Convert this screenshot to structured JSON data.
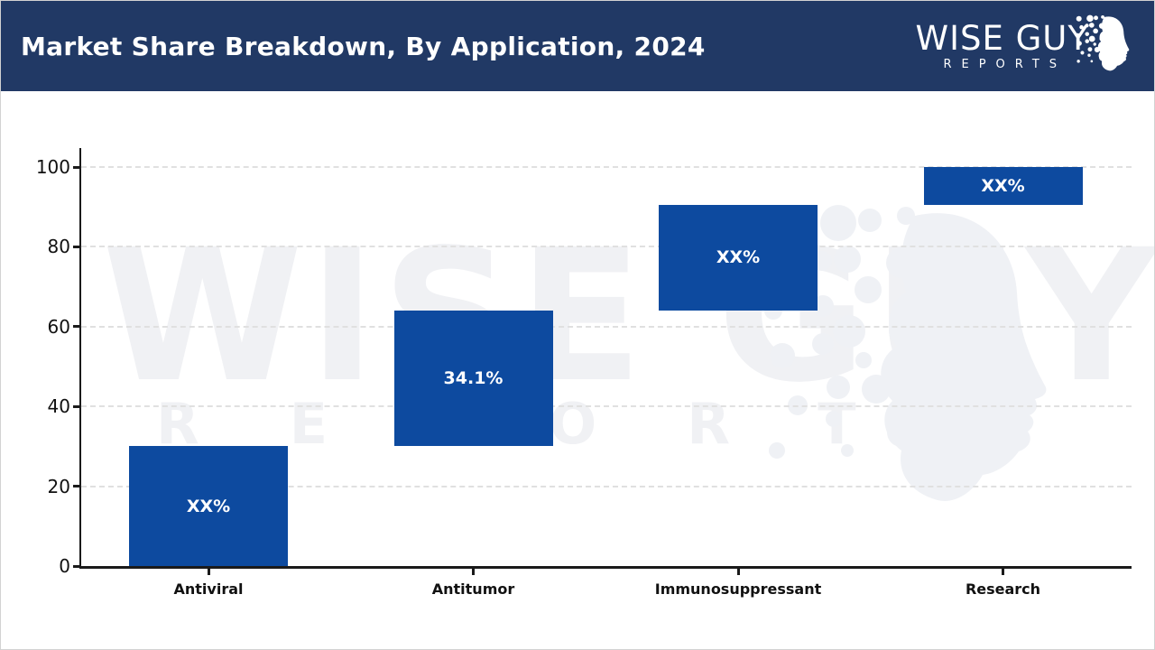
{
  "header": {
    "title": "Market Share Breakdown, By Application, 2024",
    "logo": {
      "primary": "WISE GUY",
      "secondary": "REPORTS"
    }
  },
  "watermark": {
    "primary": "WISE GUY",
    "secondary": "REPORTS"
  },
  "chart_data": {
    "type": "bar",
    "subtype": "floating-segment-waterfall",
    "title": "Market Share Breakdown, By Application, 2024",
    "categories": [
      "Antiviral",
      "Antitumor",
      "Immunosuppressant",
      "Research"
    ],
    "series": [
      {
        "name": "Market share (%)",
        "segments": [
          {
            "category": "Antiviral",
            "start": 0,
            "end": 30,
            "value_label": "XX%"
          },
          {
            "category": "Antitumor",
            "start": 30,
            "end": 64.1,
            "value": 34.1,
            "value_label": "34.1%"
          },
          {
            "category": "Immunosuppressant",
            "start": 64.1,
            "end": 90.5,
            "value_label": "XX%"
          },
          {
            "category": "Research",
            "start": 90.5,
            "end": 100,
            "value_label": "XX%"
          }
        ]
      }
    ],
    "xlabel": "",
    "ylabel": "",
    "ylim": [
      0,
      100
    ],
    "yticks": [
      0,
      20,
      40,
      60,
      80,
      100
    ],
    "grid": "horizontal dashed",
    "legend": "none",
    "colors": {
      "bar": "#0d4a9f",
      "bar_label": "#ffffff",
      "axis": "#1a1a1a",
      "gridline": "#e0e0e0",
      "header_bg": "#213965",
      "watermark": "#f0f1f4",
      "page_border": "#d2d2d2"
    }
  }
}
